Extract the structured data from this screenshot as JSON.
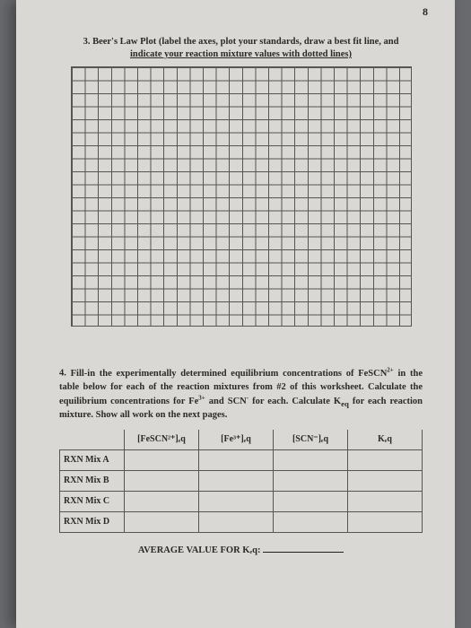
{
  "page_number": "8",
  "question3": {
    "number": "3.",
    "title_line1": "Beer's Law Plot (label the axes, plot your standards, draw a best fit line, and",
    "title_line2_underlined": "indicate your reaction mixture values with dotted lines)"
  },
  "question4": {
    "number": "4.",
    "text_html": "Fill-in the experimentally determined equilibrium concentrations of FeSCN<sup>2+</sup> in the table below for each of the reaction mixtures from #2 of this worksheet. Calculate the equilibrium concentrations for Fe<sup>3+</sup> and SCN<sup>-</sup> for each. Calculate K<sub>eq</sub> for each reaction mixture. Show all work on the next pages."
  },
  "table": {
    "headers": [
      "",
      "[FeSCN²⁺]ₑq",
      "[Fe³⁺]ₑq",
      "[SCN⁻]ₑq",
      "Kₑq"
    ],
    "rows": [
      {
        "label": "RXN Mix A",
        "cells": [
          "",
          "",
          "",
          ""
        ]
      },
      {
        "label": "RXN Mix B",
        "cells": [
          "",
          "",
          "",
          ""
        ]
      },
      {
        "label": "RXN Mix C",
        "cells": [
          "",
          "",
          "",
          ""
        ]
      },
      {
        "label": "RXN Mix D",
        "cells": [
          "",
          "",
          "",
          ""
        ]
      }
    ]
  },
  "average_label": "AVERAGE VALUE FOR Kₑq:"
}
